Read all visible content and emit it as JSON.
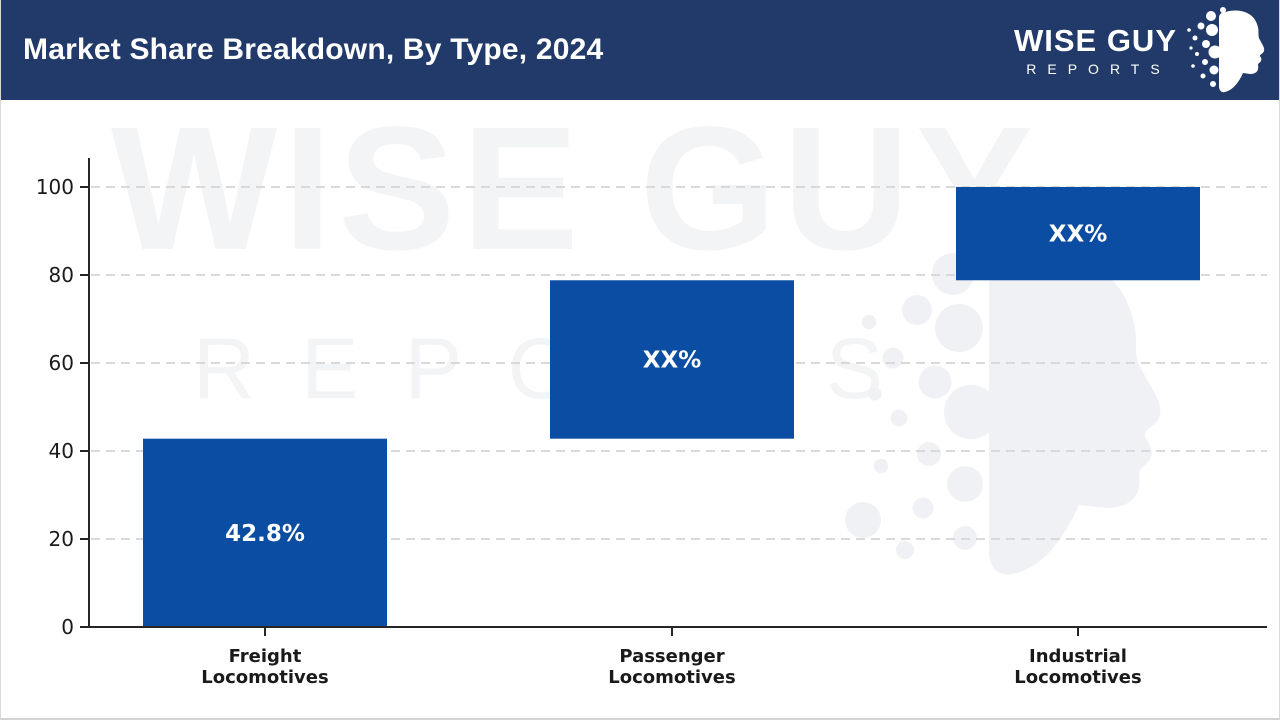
{
  "header": {
    "title": "Market Share Breakdown, By Type, 2024",
    "logo": {
      "line1": "WISE GUY",
      "line2": "REPORTS"
    }
  },
  "watermark": {
    "line1": "WISE GUY",
    "line2": "REPORTS"
  },
  "colors": {
    "header_bg": "#213A69",
    "bar": "#0B4DA2",
    "axis": "#262626",
    "gridline": "#d9d9d9",
    "tick_label": "#1a1a1a",
    "bar_label": "#ffffff",
    "watermark": "#f3f4f6"
  },
  "chart_data": {
    "type": "bar",
    "subtype": "waterfall",
    "title": "Market Share Breakdown, By Type, 2024",
    "categories": [
      "Freight Locomotives",
      "Passenger Locomotives",
      "Industrial Locomotives"
    ],
    "bars": [
      {
        "category_lines": [
          "Freight",
          "Locomotives"
        ],
        "start": 0,
        "end": 42.8,
        "value": 42.8,
        "label": "42.8%"
      },
      {
        "category_lines": [
          "Passenger",
          "Locomotives"
        ],
        "start": 42.8,
        "end": 78.8,
        "value": 36.0,
        "label": "XX%"
      },
      {
        "category_lines": [
          "Industrial",
          "Locomotives"
        ],
        "start": 78.8,
        "end": 100,
        "value": 21.2,
        "label": "XX%"
      }
    ],
    "xlabel": "",
    "ylabel": "",
    "ylim": [
      0,
      100
    ],
    "yticks": [
      0,
      20,
      40,
      60,
      80,
      100
    ],
    "grid": "horizontal-dashed",
    "legend": null
  }
}
